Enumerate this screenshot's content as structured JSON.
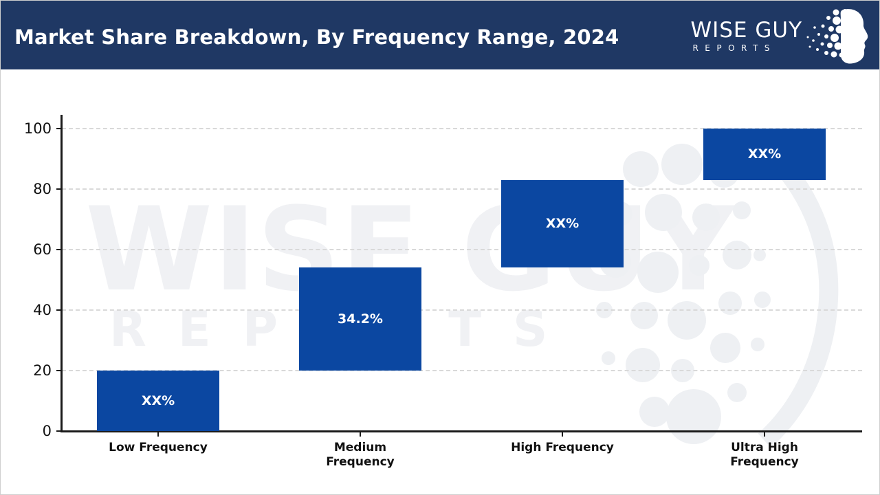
{
  "header": {
    "title": "Market Share Breakdown, By Frequency Range, 2024",
    "logo": {
      "line1": "WISE GUY",
      "line2": "REPORTS"
    }
  },
  "watermark": {
    "line1": "WISE GUY",
    "line2": "REPORTS"
  },
  "colors": {
    "header_bg": "#1f3864",
    "bar": "#0b47a1",
    "bar_label": "#ffffff",
    "watermark": "#f0f1f4",
    "gridline": "#d9d9d9",
    "axis": "#1a1a1a"
  },
  "chart_data": {
    "type": "bar",
    "subtype": "floating-waterfall",
    "title": "Market Share Breakdown, By Frequency Range, 2024",
    "categories": [
      "Low Frequency",
      "Medium Frequency",
      "High Frequency",
      "Ultra High Frequency"
    ],
    "segments": [
      {
        "category": "Low Frequency",
        "start": 0,
        "end": 20,
        "label": "XX%"
      },
      {
        "category": "Medium Frequency",
        "start": 20,
        "end": 54.2,
        "label": "34.2%"
      },
      {
        "category": "High Frequency",
        "start": 54.2,
        "end": 83,
        "label": "XX%"
      },
      {
        "category": "Ultra High Frequency",
        "start": 83,
        "end": 100,
        "label": "XX%"
      }
    ],
    "y_ticks": [
      0,
      20,
      40,
      60,
      80,
      100
    ],
    "ylim": [
      0,
      100
    ],
    "xlabel": "",
    "ylabel": "",
    "grid": "horizontal-dashed",
    "legend": "none",
    "bar_color": "#0b47a1",
    "value_label_color": "#ffffff"
  }
}
